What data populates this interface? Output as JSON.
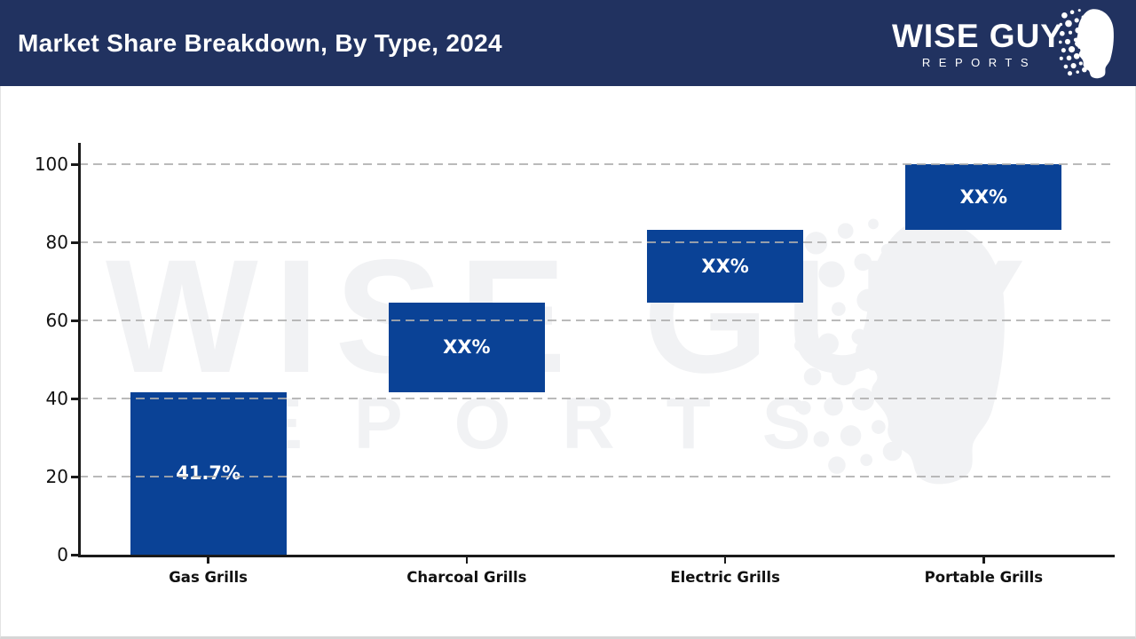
{
  "header": {
    "title": "Market Share Breakdown, By Type, 2024",
    "bg_color": "#213260",
    "logo": {
      "name": "WISE GUY",
      "sub": "REPORTS"
    }
  },
  "watermark": {
    "line1": "WISE GUY",
    "line2": "REPORTS"
  },
  "chart_data": {
    "type": "bar",
    "subtype": "waterfall",
    "title": "Market Share Breakdown, By Type, 2024",
    "categories": [
      "Gas Grills",
      "Charcoal Grills",
      "Electric Grills",
      "Portable Grills"
    ],
    "segments": [
      {
        "category": "Gas Grills",
        "start": 0,
        "end": 41.7,
        "label": "41.7%"
      },
      {
        "category": "Charcoal Grills",
        "start": 41.7,
        "end": 64.6,
        "label": "XX%"
      },
      {
        "category": "Electric Grills",
        "start": 64.6,
        "end": 83.2,
        "label": "XX%"
      },
      {
        "category": "Portable Grills",
        "start": 83.2,
        "end": 100,
        "label": "XX%"
      }
    ],
    "y_ticks": [
      0,
      20,
      40,
      60,
      80,
      100
    ],
    "ylim": [
      0,
      105
    ],
    "xlabel": "",
    "ylabel": "",
    "grid": "dashed-horizontal",
    "legend": "none",
    "bar_color": "#0a4296",
    "bar_label_color": "#ffffff",
    "axis_color": "#1a1a1a",
    "tick_label_color": "#111111"
  }
}
